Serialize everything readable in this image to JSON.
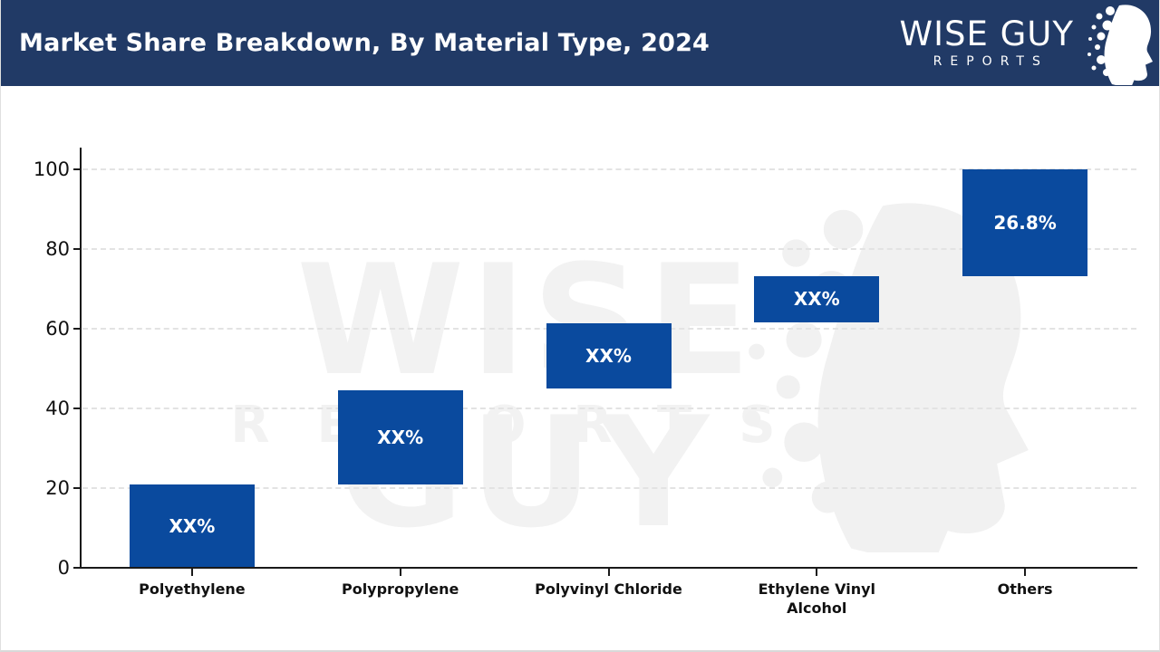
{
  "header": {
    "title": "Market Share Breakdown, By Material Type, 2024",
    "logo": {
      "line1": "WISE GUY",
      "line2": "REPORTS"
    }
  },
  "watermark": {
    "line1": "WISE GUY",
    "line2": "REPORTS"
  },
  "chart_data": {
    "type": "bar",
    "variant": "floating-segments (waterfall-style market share)",
    "title": "Market Share Breakdown, By Material Type, 2024",
    "categories": [
      "Polyethylene",
      "Polypropylene",
      "Polyvinyl Chloride",
      "Ethylene Vinyl\nAlcohol",
      "Others"
    ],
    "segments": [
      {
        "category": "Polyethylene",
        "start": 0,
        "end": 21,
        "label": "XX%"
      },
      {
        "category": "Polypropylene",
        "start": 21,
        "end": 44.5,
        "label": "XX%"
      },
      {
        "category": "Polyvinyl Chloride",
        "start": 45,
        "end": 61.3,
        "label": "XX%"
      },
      {
        "category": "Ethylene Vinyl Alcohol",
        "start": 61.7,
        "end": 73.2,
        "label": "XX%"
      },
      {
        "category": "Others",
        "start": 73.2,
        "end": 100,
        "label": "26.8%"
      }
    ],
    "ylim": [
      0,
      100
    ],
    "yticks": [
      0,
      20,
      40,
      60,
      80,
      100
    ],
    "xlabel": "",
    "ylabel": "",
    "grid": "horizontal dashed",
    "legend": "none",
    "bar_color": "#0A4A9E",
    "bar_label_color": "#FFFFFF"
  }
}
